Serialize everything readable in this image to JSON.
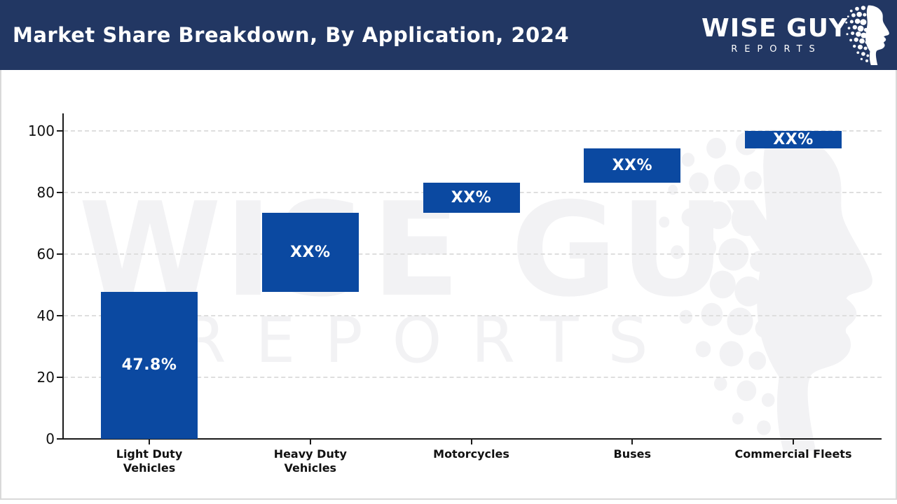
{
  "header": {
    "title": "Market Share Breakdown, By Application, 2024",
    "logo": {
      "name": "WISE GUY",
      "tagline": "REPORTS"
    }
  },
  "watermark": {
    "line1": "WISE GUY",
    "line2": "REPORTS"
  },
  "icons": {
    "logo_head": "dotted-head-profile-icon",
    "watermark_head": "dotted-head-profile-icon"
  },
  "colors": {
    "header_bg": "#223763",
    "header_text": "#ffffff",
    "bar": "#0b49a1",
    "bar_label": "#ffffff",
    "axis": "#1a1a1a",
    "grid": "#dedede",
    "tick_text": "#111111",
    "watermark": "#f2f2f4",
    "page_border": "#d9d9d9",
    "background": "#ffffff"
  },
  "chart_data": {
    "type": "bar",
    "subtype": "waterfall",
    "title": "Market Share Breakdown, By Application, 2024",
    "xlabel": "",
    "ylabel": "",
    "ylim": [
      0,
      106
    ],
    "yticks": [
      0,
      20,
      40,
      60,
      80,
      100
    ],
    "grid": true,
    "legend": "none",
    "categories": [
      "Light Duty Vehicles",
      "Heavy Duty Vehicles",
      "Motorcycles",
      "Buses",
      "Commercial Fleets"
    ],
    "category_label_lines": [
      [
        "Light Duty",
        "Vehicles"
      ],
      [
        "Heavy Duty",
        "Vehicles"
      ],
      [
        "Motorcycles"
      ],
      [
        "Buses"
      ],
      [
        "Commercial Fleets"
      ]
    ],
    "segments": [
      {
        "category": "Light Duty Vehicles",
        "start": 0,
        "end": 47.8,
        "label": "47.8%"
      },
      {
        "category": "Heavy Duty Vehicles",
        "start": 47.8,
        "end": 73.5,
        "label": "XX%"
      },
      {
        "category": "Motorcycles",
        "start": 73.5,
        "end": 83.2,
        "label": "XX%"
      },
      {
        "category": "Buses",
        "start": 83.2,
        "end": 94.3,
        "label": "XX%"
      },
      {
        "category": "Commercial Fleets",
        "start": 94.3,
        "end": 100,
        "label": "XX%"
      }
    ]
  }
}
